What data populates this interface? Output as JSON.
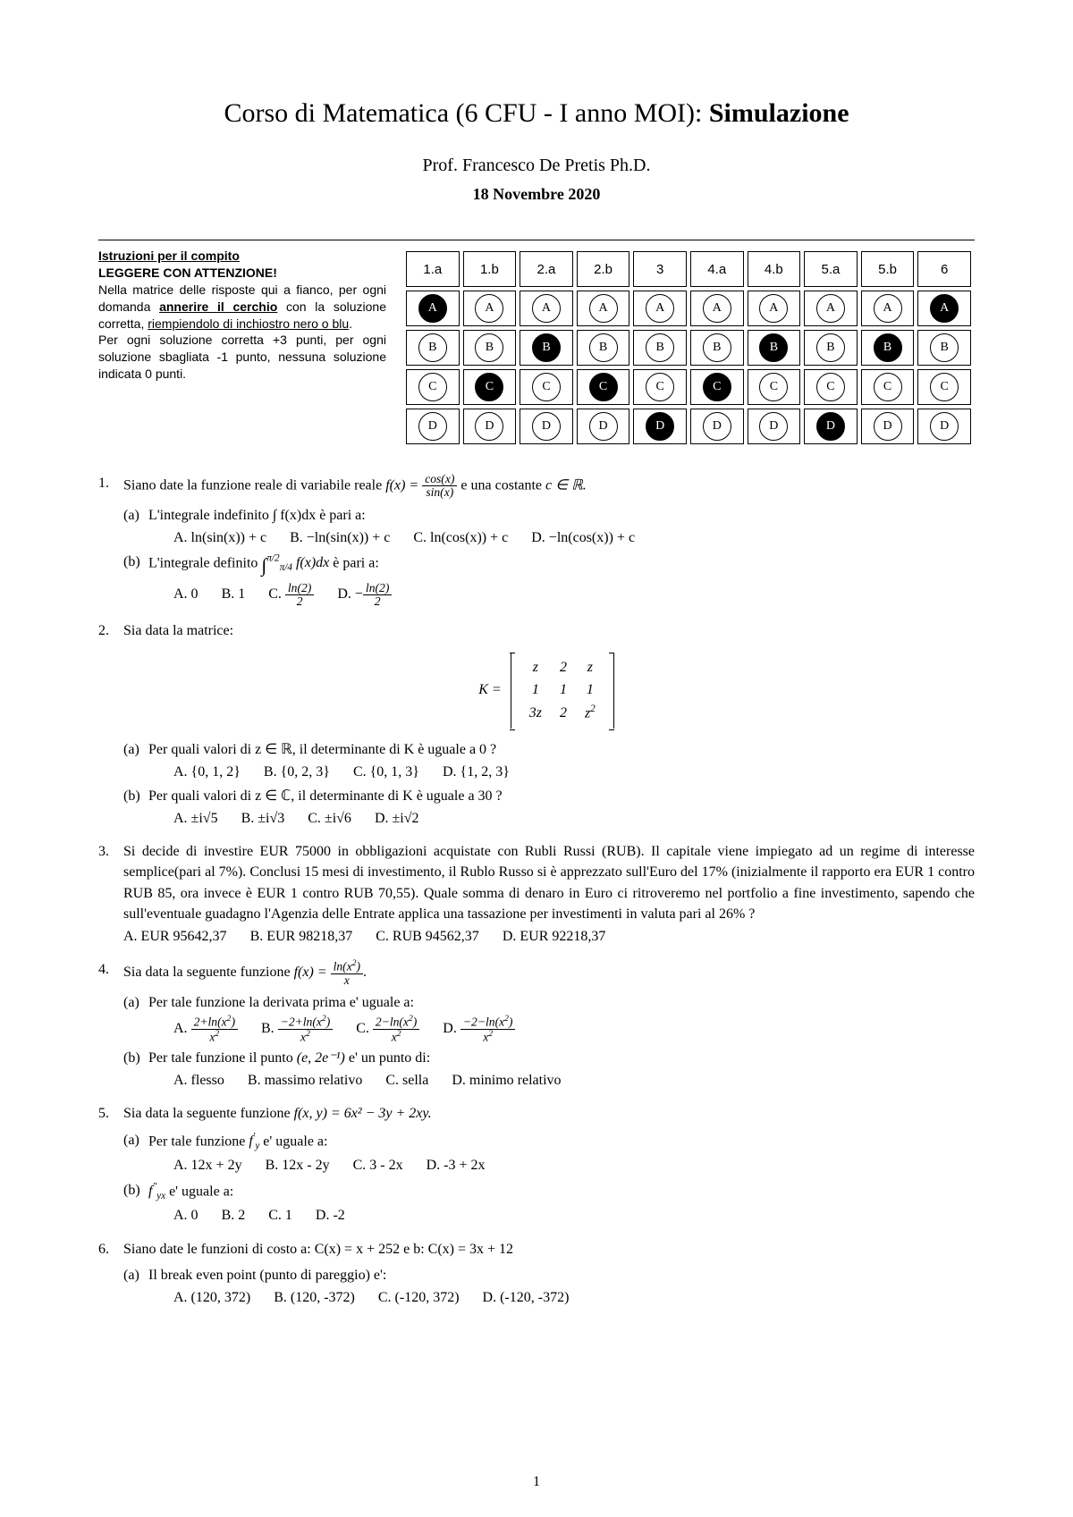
{
  "header": {
    "title_plain": "Corso di Matematica (6 CFU - I anno MOI): ",
    "title_bold": "Simulazione",
    "author": "Prof. Francesco De Pretis Ph.D.",
    "date": "18 Novembre 2020"
  },
  "instructions": {
    "line1": "Istruzioni per il compito",
    "line2": "LEGGERE CON ATTENZIONE!",
    "body_a": "Nella matrice delle risposte qui a fianco, per ogni domanda ",
    "body_b": "annerire il cerchio",
    "body_c": " con la soluzione corretta, ",
    "body_d": "riempiendolo di inchiostro nero o blu",
    "body_e": ".",
    "scoring": "Per ogni soluzione corretta +3 punti, per ogni soluzione sbagliata -1 punto, nessuna soluzione indicata 0 punti."
  },
  "grid": {
    "columns": [
      "1.a",
      "1.b",
      "2.a",
      "2.b",
      "3",
      "4.a",
      "4.b",
      "5.a",
      "5.b",
      "6"
    ],
    "rows": [
      "A",
      "B",
      "C",
      "D"
    ],
    "filled": {
      "A": [
        true,
        false,
        false,
        false,
        false,
        false,
        false,
        false,
        false,
        true
      ],
      "B": [
        false,
        false,
        true,
        false,
        false,
        false,
        true,
        false,
        true,
        false
      ],
      "C": [
        false,
        true,
        false,
        true,
        false,
        true,
        false,
        false,
        false,
        false
      ],
      "D": [
        false,
        false,
        false,
        false,
        true,
        false,
        false,
        true,
        false,
        false
      ]
    }
  },
  "q1": {
    "text_a": "Siano date la funzione reale di variabile reale ",
    "text_b": " e una costante ",
    "const": "c ∈ ℝ.",
    "sub_a": "L'integrale indefinito ∫ f(x)dx è pari a:",
    "a_opts": [
      "A.  ln(sin(x)) + c",
      "B.  −ln(sin(x)) + c",
      "C.  ln(cos(x)) + c",
      "D.  −ln(cos(x)) + c"
    ],
    "sub_b_pre": "L'integrale definito ",
    "sub_b_post": " è pari a:",
    "b_opts_plain": [
      "A.  0",
      "B.  1"
    ]
  },
  "q2": {
    "intro": "Sia data la matrice:",
    "sub_a": "Per quali valori di z ∈ ℝ, il determinante di K è uguale a 0 ?",
    "a_opts": [
      "A.  {0, 1, 2}",
      "B.  {0, 2, 3}",
      "C.  {0, 1, 3}",
      "D.  {1, 2, 3}"
    ],
    "sub_b": "Per quali valori di z ∈ ℂ, il determinante di K è uguale a 30 ?",
    "b_opts": [
      "A.  ±i√5",
      "B.  ±i√3",
      "C.  ±i√6",
      "D.  ±i√2"
    ]
  },
  "q3": {
    "text": "Si decide di investire EUR 75000 in obbligazioni acquistate con Rubli Russi (RUB). Il capitale viene impiegato ad un regime di interesse semplice(pari al 7%). Conclusi 15 mesi di investimento, il Rublo Russo si è apprezzato sull'Euro del 17% (inizialmente il rapporto era EUR 1 contro RUB 85, ora invece è EUR 1 contro RUB 70,55). Quale somma di denaro in Euro ci ritroveremo nel portfolio a fine investimento, sapendo che sull'eventuale guadagno l'Agenzia delle Entrate applica una tassazione per investimenti in valuta pari al 26% ?",
    "opts": [
      "A.  EUR 95642,37",
      "B.  EUR 98218,37",
      "C.  RUB 94562,37",
      "D.  EUR 92218,37"
    ]
  },
  "q4": {
    "intro": "Sia data la seguente funzione ",
    "sub_a": "Per tale funzione la derivata prima e' uguale a:",
    "sub_b_pre": "Per tale funzione il punto ",
    "sub_b_point": "(e, 2e⁻¹)",
    "sub_b_post": " e' un punto di:",
    "b_opts": [
      "A.  flesso",
      "B.  massimo relativo",
      "C.  sella",
      "D.  minimo relativo"
    ]
  },
  "q5": {
    "intro_a": "Sia data la seguente funzione ",
    "func": "f(x, y) = 6x² − 3y + 2xy.",
    "sub_a_pre": "Per tale funzione ",
    "sub_a_post": " e' uguale a:",
    "a_opts": [
      "A.  12x + 2y",
      "B.  12x - 2y",
      "C.  3 - 2x",
      "D.  -3 + 2x"
    ],
    "sub_b_pre": "",
    "sub_b_post": " e' uguale a:",
    "b_opts": [
      "A.  0",
      "B.  2",
      "C.  1",
      "D.  -2"
    ]
  },
  "q6": {
    "intro": "Siano date le funzioni di costo a: C(x) = x + 252 e b: C(x) = 3x + 12",
    "sub_a": "Il break even point (punto di pareggio) e':",
    "a_opts": [
      "A.  (120, 372)",
      "B.  (120, -372)",
      "C.  (-120, 372)",
      "D.  (-120, -372)"
    ]
  },
  "pagenum": "1"
}
